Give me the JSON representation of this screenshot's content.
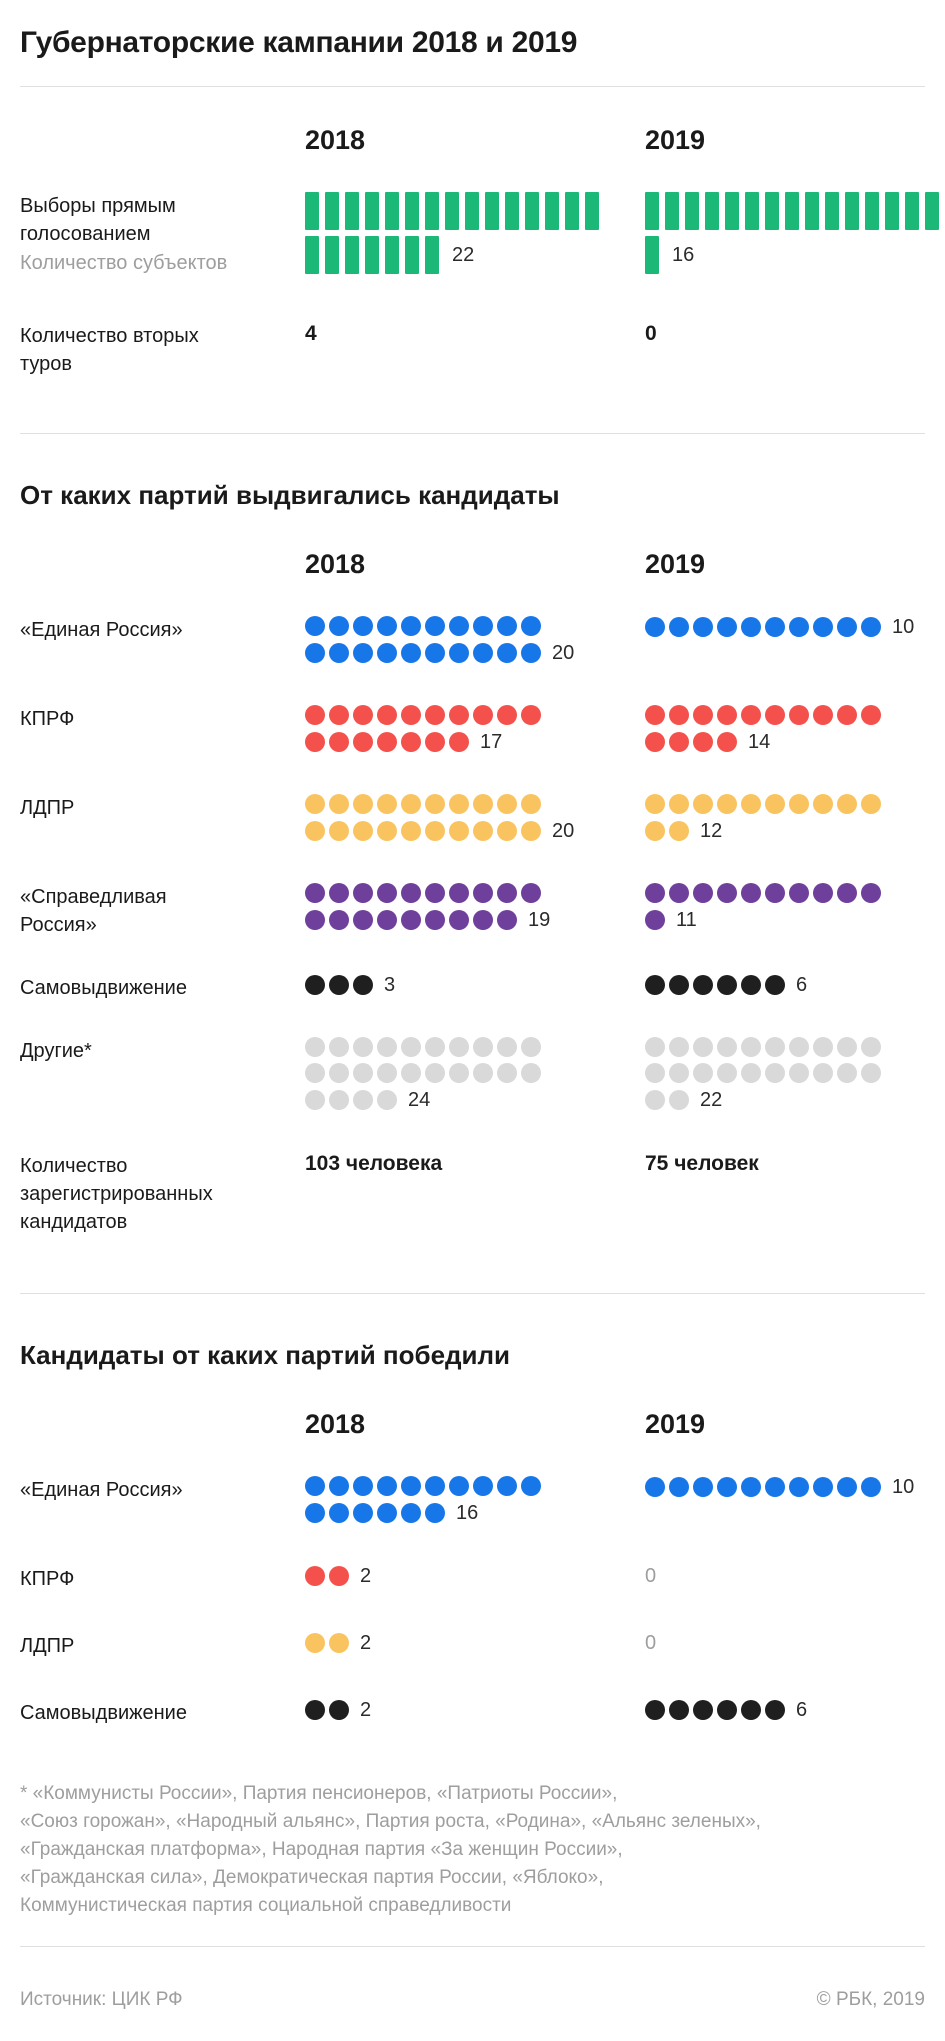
{
  "title": "Губернаторские кампании 2018 и 2019",
  "years": [
    "2018",
    "2019"
  ],
  "colors": {
    "green": "#1cb877",
    "blue": "#1777e8",
    "red": "#f4514c",
    "yellow": "#f9c45f",
    "purple": "#6f3f9c",
    "black": "#1f1f1f",
    "gray": "#d9d9d9"
  },
  "chart_data": [
    {
      "type": "pictogram",
      "title": "",
      "unit": "subjects",
      "columns": [
        "2018",
        "2019"
      ],
      "rows": [
        {
          "label": "Выборы прямым голосованием",
          "sublabel": "Количество субъектов",
          "display": "bars",
          "color": "green",
          "values": {
            "y2018": 22,
            "y2019": 16
          }
        },
        {
          "label": "Количество вторых туров",
          "display": "text",
          "values": {
            "y2018": "4",
            "y2019": "0"
          }
        }
      ]
    },
    {
      "type": "pictogram",
      "title": "От каких партий выдвигались кандидаты",
      "unit": "candidates",
      "columns": [
        "2018",
        "2019"
      ],
      "rows": [
        {
          "label": "«Единая Россия»",
          "color": "blue",
          "values": {
            "y2018": 20,
            "y2019": 10
          }
        },
        {
          "label": "КПРФ",
          "color": "red",
          "values": {
            "y2018": 17,
            "y2019": 14
          }
        },
        {
          "label": "ЛДПР",
          "color": "yellow",
          "values": {
            "y2018": 20,
            "y2019": 12
          }
        },
        {
          "label": "«Справедливая Россия»",
          "color": "purple",
          "values": {
            "y2018": 19,
            "y2019": 11
          }
        },
        {
          "label": "Самовыдвижение",
          "color": "black",
          "values": {
            "y2018": 3,
            "y2019": 6
          }
        },
        {
          "label": "Другие*",
          "color": "gray",
          "values": {
            "y2018": 24,
            "y2019": 22
          }
        }
      ],
      "totals": {
        "label": "Количество зарегистрированных кандидатов",
        "y2018": "103 человека",
        "y2019": "75 человек"
      }
    },
    {
      "type": "pictogram",
      "title": "Кандидаты от каких партий победили",
      "unit": "winners",
      "columns": [
        "2018",
        "2019"
      ],
      "rows": [
        {
          "label": "«Единая Россия»",
          "color": "blue",
          "values": {
            "y2018": 16,
            "y2019": 10
          }
        },
        {
          "label": "КПРФ",
          "color": "red",
          "values": {
            "y2018": 2,
            "y2019": 0
          }
        },
        {
          "label": "ЛДПР",
          "color": "yellow",
          "values": {
            "y2018": 2,
            "y2019": 0
          }
        },
        {
          "label": "Самовыдвижение",
          "color": "black",
          "values": {
            "y2018": 2,
            "y2019": 6
          }
        }
      ]
    }
  ],
  "footnote": "* «Коммунисты России», Партия пенсионеров, «Патриоты России»,\n«Союз горожан», «Народный альянс», Партия роста, «Родина», «Альянс зеленых»,\n«Гражданская платформа», Народная партия «За женщин России»,\n«Гражданская сила», Демократическая партия России, «Яблоко»,\nКоммунистическая партия социальной справедливости",
  "footer": {
    "source": "Источник: ЦИК РФ",
    "copyright": "© РБК, 2019"
  }
}
